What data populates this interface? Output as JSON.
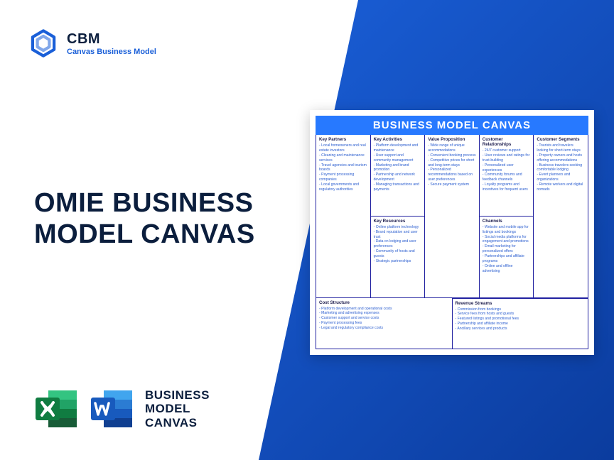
{
  "header": {
    "brand": "CBM",
    "subtitle": "Canvas Business Model",
    "logo_color": "#1a5fd8"
  },
  "main_title": "OMIE BUSINESS MODEL CANVAS",
  "footer": {
    "label": "BUSINESS MODEL CANVAS",
    "excel_color_dark": "#107c41",
    "excel_color_light": "#21a366",
    "word_color_dark": "#185abd",
    "word_color_light": "#2b7cd3"
  },
  "canvas": {
    "title": "BUSINESS MODEL CANVAS",
    "title_bg": "#2779ff",
    "border_color": "#2020a0",
    "cells": {
      "key_partners": {
        "title": "Key Partners",
        "items": [
          "Local homeowners and real estate investors",
          "Cleaning and maintenance services",
          "Travel agencies and tourism boards",
          "Payment processing companies",
          "Local governments and regulatory authorities"
        ]
      },
      "key_activities": {
        "title": "Key Activities",
        "items": [
          "Platform development and maintenance",
          "User support and community management",
          "Marketing and brand promotion",
          "Partnership and network development",
          "Managing transactions and payments"
        ]
      },
      "key_resources": {
        "title": "Key Resources",
        "items": [
          "Online platform technology",
          "Brand reputation and user trust",
          "Data on lodging and user preferences",
          "Community of hosts and guests",
          "Strategic partnerships"
        ]
      },
      "value_proposition": {
        "title": "Value Proposition",
        "items": [
          "Wide range of unique accommodations",
          "Convenient booking process",
          "Competitive prices for short and long-term stays",
          "Personalized recommendations based on user preferences",
          "Secure payment system"
        ]
      },
      "customer_relationships": {
        "title": "Customer Relationships",
        "items": [
          "24/7 customer support",
          "User reviews and ratings for trust-building",
          "Personalized user experiences",
          "Community forums and feedback channels",
          "Loyalty programs and incentives for frequent users"
        ]
      },
      "channels": {
        "title": "Channels",
        "items": [
          "Website and mobile app for listings and bookings",
          "Social media platforms for engagement and promotions",
          "Email marketing for personalized offers",
          "Partnerships and affiliate programs",
          "Online and offline advertising"
        ]
      },
      "customer_segments": {
        "title": "Customer Segments",
        "items": [
          "Tourists and travelers looking for short-term stays",
          "Property owners and hosts offering accommodations",
          "Business travelers seeking comfortable lodging",
          "Event planners and organizations",
          "Remote workers and digital nomads"
        ]
      },
      "cost_structure": {
        "title": "Cost Structure",
        "items": [
          "Platform development and operational costs",
          "Marketing and advertising expenses",
          "Customer support and service costs",
          "Payment processing fees",
          "Legal and regulatory compliance costs"
        ]
      },
      "revenue_streams": {
        "title": "Revenue Streams",
        "items": [
          "Commission from bookings",
          "Service fees from hosts and guests",
          "Featured listings and promotional fees",
          "Partnership and affiliate income",
          "Ancillary services and products"
        ]
      }
    }
  }
}
